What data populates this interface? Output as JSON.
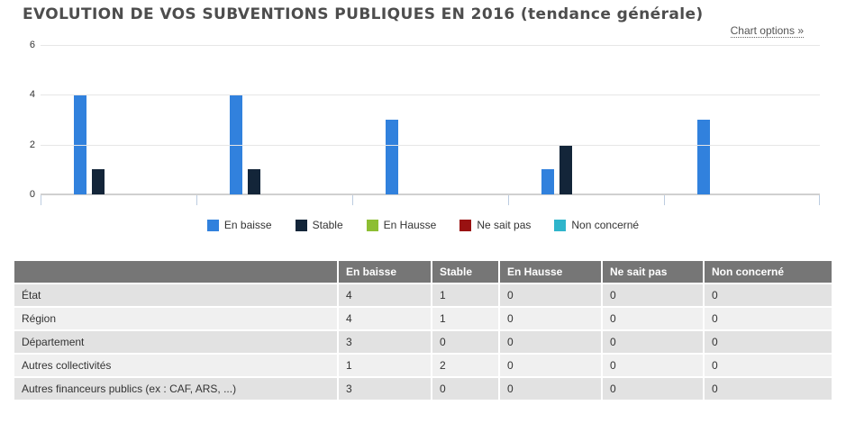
{
  "page": {
    "title": "EVOLUTION DE VOS SUBVENTIONS PUBLIQUES EN 2016 (tendance générale)",
    "chart_options_label": "Chart options »"
  },
  "chart_data": {
    "type": "bar",
    "title": "EVOLUTION DE VOS SUBVENTIONS PUBLIQUES EN 2016 (tendance générale)",
    "categories": [
      "État",
      "Région",
      "Département",
      "Autres collectivités",
      "Autres financeurs publics (ex : CAF, ARS, ...)"
    ],
    "series": [
      {
        "name": "En baisse",
        "color": "#3181dd",
        "values": [
          4,
          4,
          3,
          1,
          3
        ]
      },
      {
        "name": "Stable",
        "color": "#132539",
        "values": [
          1,
          1,
          0,
          2,
          0
        ]
      },
      {
        "name": "En Hausse",
        "color": "#8dbe33",
        "values": [
          0,
          0,
          0,
          0,
          0
        ]
      },
      {
        "name": "Ne sait pas",
        "color": "#991111",
        "values": [
          0,
          0,
          0,
          0,
          0
        ]
      },
      {
        "name": "Non concerné",
        "color": "#2fb5cb",
        "values": [
          0,
          0,
          0,
          0,
          0
        ]
      }
    ],
    "xlabel": "",
    "ylabel": "",
    "ylim": [
      0,
      6
    ],
    "y_ticks": [
      0,
      2,
      4,
      6
    ],
    "grid": true,
    "legend_position": "bottom",
    "x_tick_labels_visible": false
  },
  "table": {
    "header": [
      "",
      "En baisse",
      "Stable",
      "En Hausse",
      "Ne sait pas",
      "Non concerné"
    ],
    "rows": [
      {
        "label": "État",
        "values": [
          4,
          1,
          0,
          0,
          0
        ]
      },
      {
        "label": "Région",
        "values": [
          4,
          1,
          0,
          0,
          0
        ]
      },
      {
        "label": "Département",
        "values": [
          3,
          0,
          0,
          0,
          0
        ]
      },
      {
        "label": "Autres collectivités",
        "values": [
          1,
          2,
          0,
          0,
          0
        ]
      },
      {
        "label": "Autres financeurs publics (ex : CAF, ARS, ...)",
        "values": [
          3,
          0,
          0,
          0,
          0
        ]
      }
    ]
  }
}
